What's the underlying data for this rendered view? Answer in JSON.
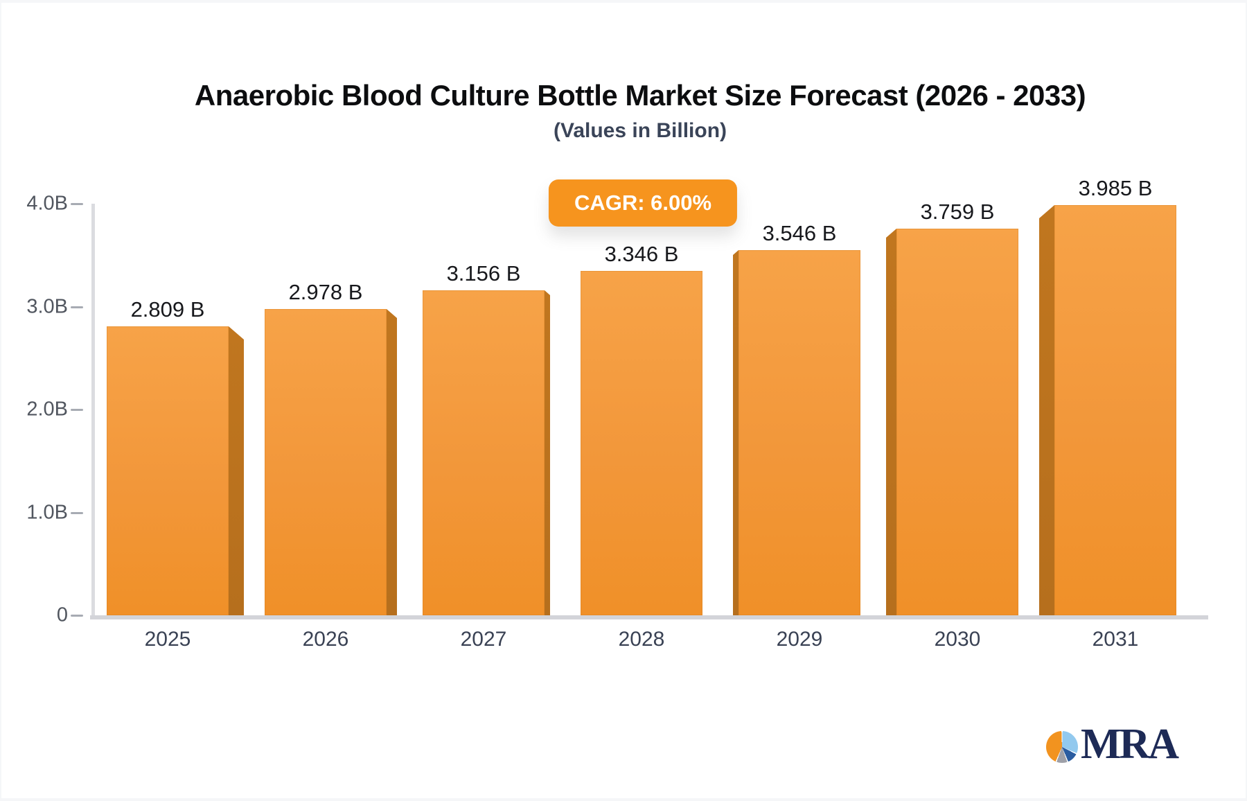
{
  "title": "Anaerobic Blood Culture Bottle Market Size Forecast (2026 - 2033)",
  "subtitle": "(Values in Billion)",
  "badge": {
    "label": "CAGR: 6.00%",
    "color": "#f6941e"
  },
  "chart_data": {
    "type": "bar",
    "categories": [
      "2025",
      "2026",
      "2027",
      "2028",
      "2029",
      "2030",
      "2031"
    ],
    "values": [
      2.809,
      2.978,
      3.156,
      3.346,
      3.546,
      3.759,
      3.985
    ],
    "value_labels": [
      "2.809 B",
      "2.978 B",
      "3.156 B",
      "3.346 B",
      "3.546 B",
      "3.759 B",
      "3.985 B"
    ],
    "y_ticks": [
      {
        "label": "4.0B",
        "value": 4.0
      },
      {
        "label": "3.0B",
        "value": 3.0
      },
      {
        "label": "2.0B",
        "value": 2.0
      },
      {
        "label": "1.0B",
        "value": 1.0
      },
      {
        "label": "0",
        "value": 0.0
      }
    ],
    "ylim": [
      0,
      4.0
    ],
    "grid": "off",
    "legend": "none",
    "bar_color": "#f29b38",
    "bar_side_color": "#bc721e"
  },
  "logo": {
    "text": "MRA",
    "pie_colors": {
      "orange": "#f2931f",
      "light_blue": "#92c9ee",
      "dark_blue": "#2a5ca0",
      "gray": "#9ea0a8"
    },
    "text_color": "#1d2a56"
  }
}
